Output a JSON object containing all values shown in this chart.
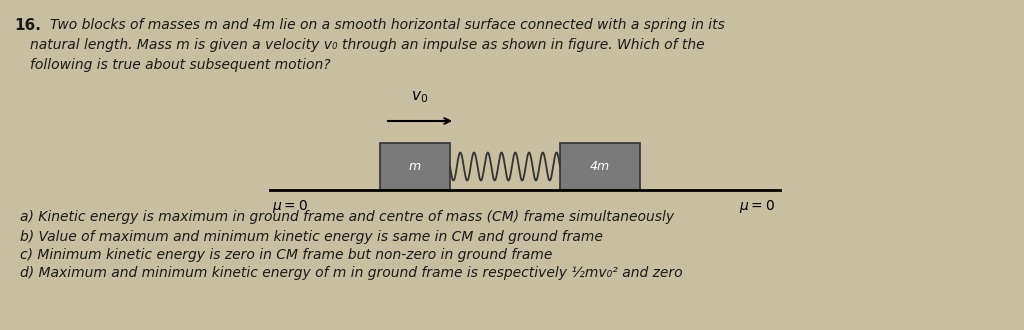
{
  "background_color": "#c8bfa0",
  "question_number": "16.",
  "question_text_line1": "Two blocks of masses m and 4m lie on a smooth horizontal surface connected with a spring in its",
  "question_text_line2": "natural length. Mass m is given a velocity v₀ through an impulse as shown in figure. Which of the",
  "question_text_line3": "following is true about subsequent motion?",
  "option_a": "a) Kinetic energy is maximum in ground frame and centre of mass (CM) frame simultaneously",
  "option_b": "b) Value of maximum and minimum kinetic energy is same in CM and ground frame",
  "option_c": "c) Minimum kinetic energy is zero in CM frame but non-zero in ground frame",
  "option_d": "d) Maximum and minimum kinetic energy of m in ground frame is respectively ½mv₀² and zero",
  "block_color": "#7a7a7a",
  "text_color": "#1a1a1a",
  "font_size_text": 10,
  "font_size_diagram": 9
}
